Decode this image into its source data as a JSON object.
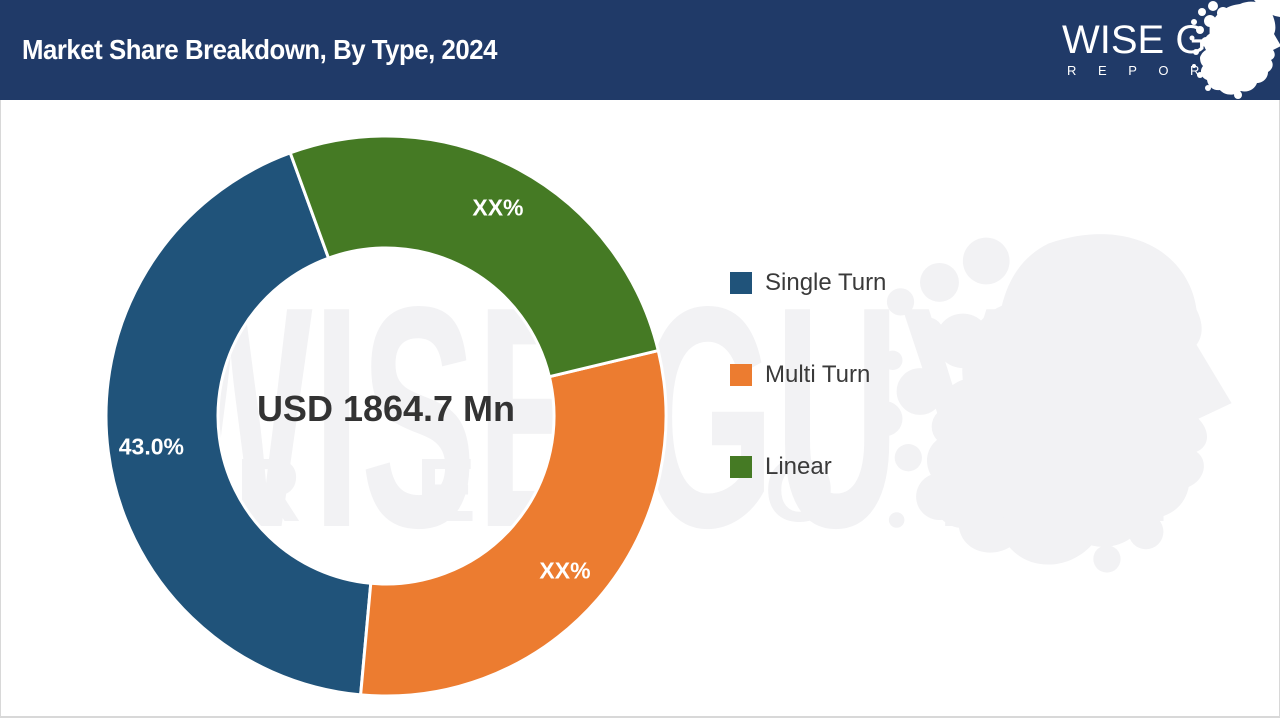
{
  "header": {
    "title": "Market Share Breakdown, By Type, 2024",
    "logo_name": "WISE GUY",
    "logo_sub": "R E P O R T S",
    "bg_color": "#203a68"
  },
  "watermark": {
    "line1": "WISE GUY",
    "line2": "R E P O R T S",
    "color": "#f2f2f4"
  },
  "chart_data": {
    "type": "donut",
    "title": "Market Share Breakdown, By Type, 2024",
    "center_label": "USD 1864.7 Mn",
    "start_angle_deg": 340,
    "hole_ratio": 0.6,
    "legend_position": "right",
    "direction": "counterclockwise",
    "segments": [
      {
        "name": "Single Turn",
        "value": 43.0,
        "label": "43.0%",
        "color": "#20537a"
      },
      {
        "name": "Multi Turn",
        "value": 30.2,
        "label": "XX%",
        "color": "#ec7c30"
      },
      {
        "name": "Linear",
        "value": 26.8,
        "label": "XX%",
        "color": "#457a24"
      }
    ]
  }
}
